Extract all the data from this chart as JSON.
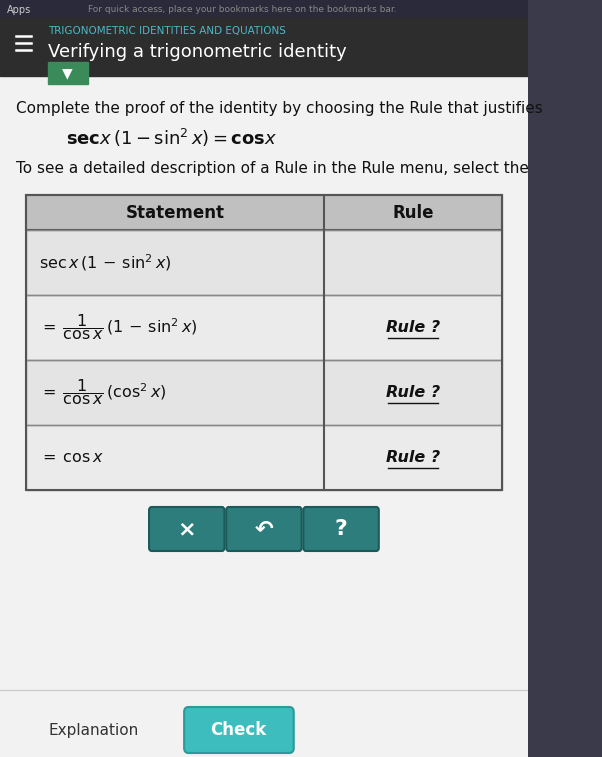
{
  "top_bar_color": "#2d2d2d",
  "top_subtitle_color": "#4db8b8",
  "top_subtitle_text": "TRIGONOMETRIC IDENTITIES AND EQUATIONS",
  "top_title_text": "Verifying a trigonometric identity",
  "top_title_color": "#ffffff",
  "main_bg_color": "#f0f0f0",
  "instruction_text": "Complete the proof of the identity by choosing the Rule that justifies",
  "description_text": "To see a detailed description of a Rule in the Rule menu, select the",
  "table_header_bg": "#c8c8c8",
  "table_row_bg": "#e8e8e8",
  "table_border_color": "#555555",
  "col_statement": "Statement",
  "col_rule": "Rule",
  "row_rules": [
    "",
    "Rule ?",
    "Rule ?",
    "Rule ?"
  ],
  "button_color": "#2d7d7d",
  "button_text_color": "#ffffff",
  "buttons": [
    "×",
    "↶",
    "?"
  ],
  "explanation_text": "Explanation",
  "check_text": "Check",
  "check_btn_color": "#4db8b8",
  "check_btn_text_color": "#ffffff",
  "page_bg": "#3a3a4a",
  "apps_text": "Apps",
  "for_quick_text": "For quick access, place your bookmarks here on the bookmarks bar."
}
